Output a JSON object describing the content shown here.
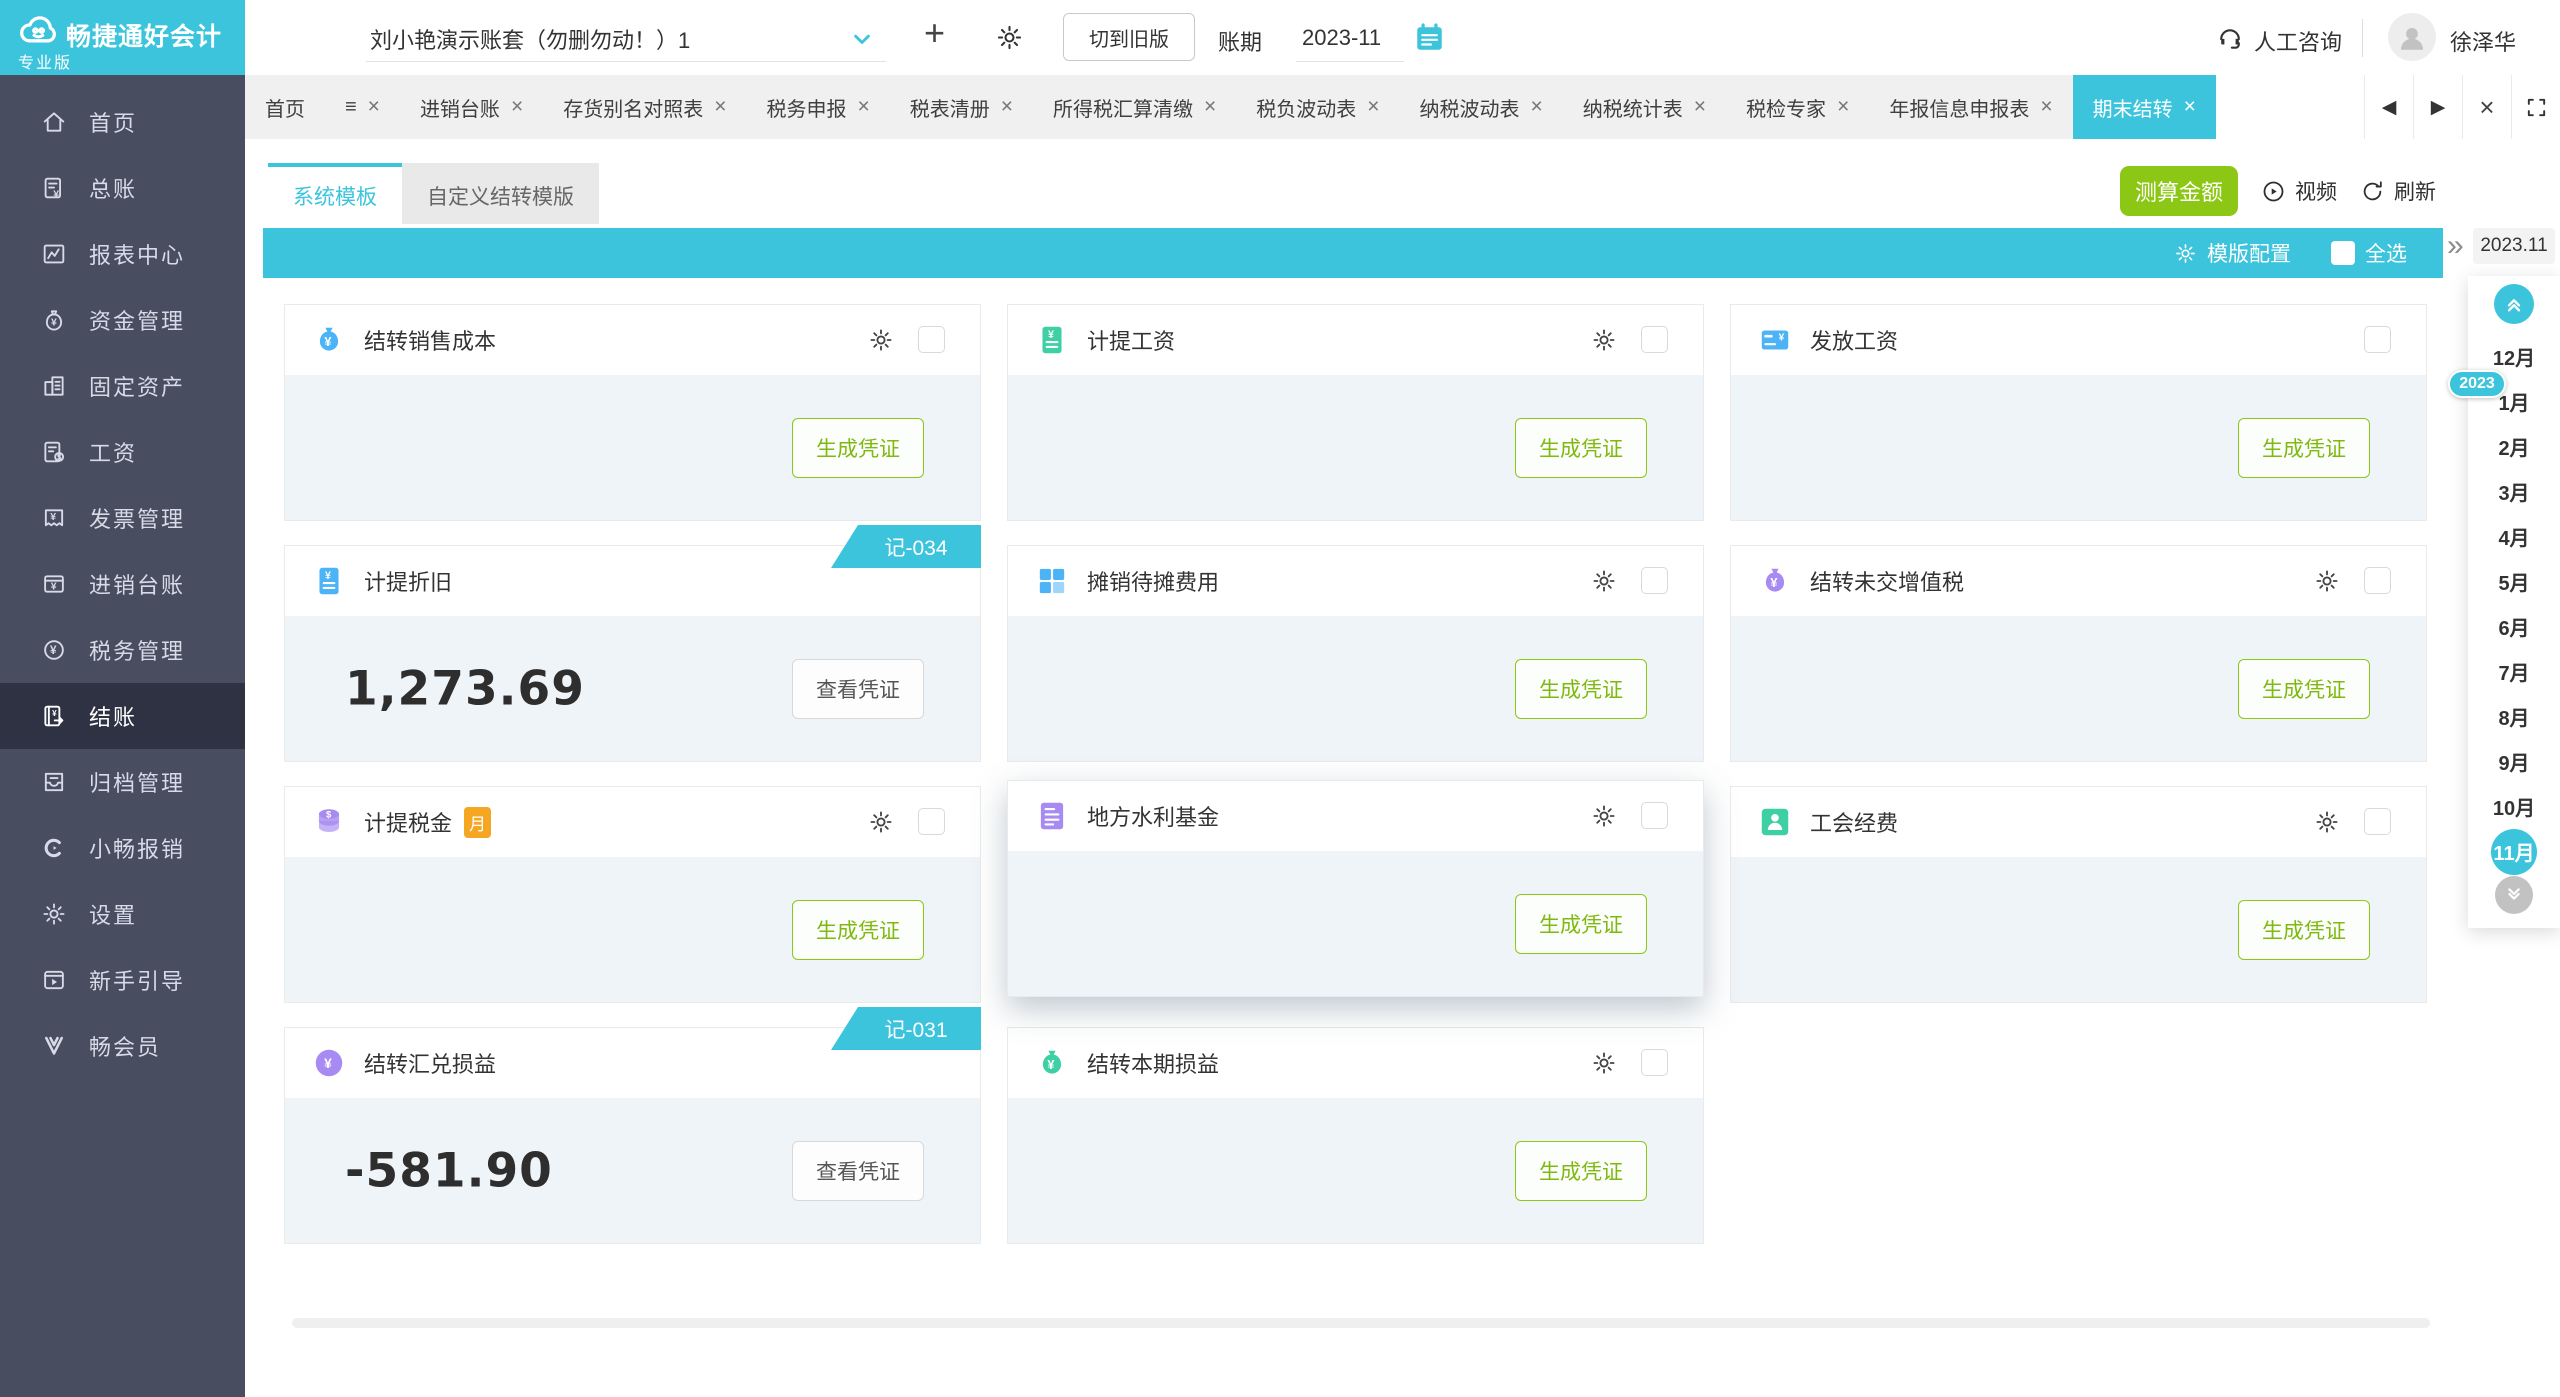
{
  "colors": {
    "brand": "#3BC4DC",
    "green": "#8CC716",
    "blue": "#4DB3F7",
    "mint": "#3ED0A4",
    "purple": "#A78BF2",
    "orange": "#F5A623"
  },
  "topbar": {
    "brand_name": "畅捷通好会计",
    "brand_edition": "专业版",
    "account": "刘小艳演示账套（勿删勿动！）1",
    "switch_old_label": "切到旧版",
    "period_label": "账期",
    "period_value": "2023-11",
    "support_label": "人工咨询",
    "user_name": "徐泽华"
  },
  "sidebar": {
    "items": [
      {
        "label": "首页",
        "icon": "home",
        "active": false
      },
      {
        "label": "总账",
        "icon": "ledger",
        "active": false
      },
      {
        "label": "报表中心",
        "icon": "report",
        "active": false
      },
      {
        "label": "资金管理",
        "icon": "funds",
        "active": false
      },
      {
        "label": "固定资产",
        "icon": "assets",
        "active": false
      },
      {
        "label": "工资",
        "icon": "payroll",
        "active": false
      },
      {
        "label": "发票管理",
        "icon": "invoice",
        "active": false
      },
      {
        "label": "进销台账",
        "icon": "purchase",
        "active": false
      },
      {
        "label": "税务管理",
        "icon": "tax",
        "active": false
      },
      {
        "label": "结账",
        "icon": "closing",
        "active": true
      },
      {
        "label": "归档管理",
        "icon": "archive",
        "active": false
      },
      {
        "label": "小畅报销",
        "icon": "reimburse",
        "active": false
      },
      {
        "label": "设置",
        "icon": "settings",
        "active": false
      },
      {
        "label": "新手引导",
        "icon": "guide",
        "active": false
      },
      {
        "label": "畅会员",
        "icon": "member",
        "active": false
      }
    ]
  },
  "tabbar": {
    "tabs": [
      {
        "label": "首页",
        "closable": false,
        "active": false
      },
      {
        "label": "≡",
        "closable": true,
        "active": false
      },
      {
        "label": "进销台账",
        "closable": true,
        "active": false
      },
      {
        "label": "存货别名对照表",
        "closable": true,
        "active": false
      },
      {
        "label": "税务申报",
        "closable": true,
        "active": false
      },
      {
        "label": "税表清册",
        "closable": true,
        "active": false
      },
      {
        "label": "所得税汇算清缴",
        "closable": true,
        "active": false
      },
      {
        "label": "税负波动表",
        "closable": true,
        "active": false
      },
      {
        "label": "纳税波动表",
        "closable": true,
        "active": false
      },
      {
        "label": "纳税统计表",
        "closable": true,
        "active": false
      },
      {
        "label": "税检专家",
        "closable": true,
        "active": false
      },
      {
        "label": "年报信息申报表",
        "closable": true,
        "active": false
      },
      {
        "label": "期末结转",
        "closable": true,
        "active": true
      }
    ]
  },
  "subtabs": {
    "tabs": [
      {
        "label": "系统模板",
        "active": true
      },
      {
        "label": "自定义结转模版",
        "active": false
      }
    ],
    "measure_label": "测算金额",
    "video_label": "视频",
    "refresh_label": "刷新"
  },
  "banner": {
    "template_config_label": "模版配置",
    "select_all_label": "全选",
    "select_all_checked": false
  },
  "cards": [
    {
      "title": "结转销售成本",
      "icon": "bag",
      "color": "blue",
      "gear": true,
      "checkbox": true,
      "action": "生成凭证",
      "action_type": "generate"
    },
    {
      "title": "计提工资",
      "icon": "doc",
      "color": "mint",
      "gear": true,
      "checkbox": true,
      "action": "生成凭证",
      "action_type": "generate"
    },
    {
      "title": "发放工资",
      "icon": "card",
      "color": "blue",
      "gear": false,
      "checkbox": true,
      "action": "生成凭证",
      "action_type": "generate"
    },
    {
      "title": "计提折旧",
      "icon": "doc",
      "color": "blue",
      "gear": false,
      "checkbox": false,
      "ribbon": "记-034",
      "value": "1,273.69",
      "action": "查看凭证",
      "action_type": "view"
    },
    {
      "title": "摊销待摊费用",
      "icon": "grid",
      "color": "blue",
      "gear": true,
      "checkbox": true,
      "action": "生成凭证",
      "action_type": "generate"
    },
    {
      "title": "结转未交增值税",
      "icon": "bag",
      "color": "purple",
      "gear": true,
      "checkbox": true,
      "action": "生成凭证",
      "action_type": "generate"
    },
    {
      "title": "计提税金",
      "icon": "coins",
      "color": "purple",
      "badge": "月",
      "gear": true,
      "checkbox": true,
      "action": "生成凭证",
      "action_type": "generate"
    },
    {
      "title": "地方水利基金",
      "icon": "flag",
      "color": "purple",
      "gear": true,
      "checkbox": true,
      "action": "生成凭证",
      "action_type": "generate",
      "elevated": true
    },
    {
      "title": "工会经费",
      "icon": "person",
      "color": "mint",
      "gear": true,
      "checkbox": true,
      "action": "生成凭证",
      "action_type": "generate"
    },
    {
      "title": "结转汇兑损益",
      "icon": "circle",
      "color": "purple",
      "gear": false,
      "checkbox": false,
      "ribbon": "记-031",
      "value": "-581.90",
      "action": "查看凭证",
      "action_type": "view"
    },
    {
      "title": "结转本期损益",
      "icon": "bag",
      "color": "mint",
      "gear": true,
      "checkbox": true,
      "action": "生成凭证",
      "action_type": "generate"
    }
  ],
  "month_rail": {
    "collapse_icon": "»",
    "header": "2023.11",
    "year_badge": "2023",
    "months": [
      "12月",
      "1月",
      "2月",
      "3月",
      "4月",
      "5月",
      "6月",
      "7月",
      "8月",
      "9月",
      "10月",
      "11月"
    ],
    "active_month": "11月"
  }
}
